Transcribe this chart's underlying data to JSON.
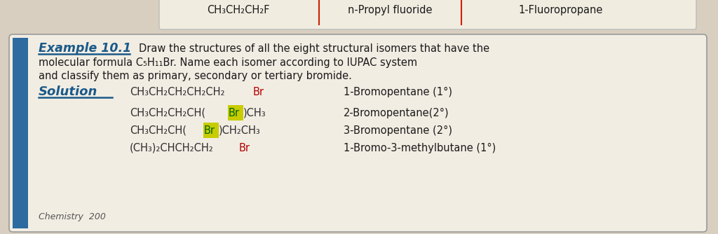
{
  "bg_color": "#d8cfc0",
  "card_color": "#f2ede3",
  "top_card_color": "#f0ece0",
  "top_section": {
    "formula": "CH₃CH₂CH₂F",
    "common_name": "n-Propyl fluoride",
    "iupac_name": "1-Fluoropropane"
  },
  "example_label": "Example 10.1",
  "example_text_line1": "Draw the structures of all the eight structural isomers that have the",
  "example_text_line2": "molecular formula C₅H₁₁Br. Name each isomer according to IUPAC system",
  "example_text_line3": "and classify them as primary, secondary or tertiary bromide.",
  "solution_label": "Solution",
  "solution_entries": [
    {
      "formula_parts": [
        {
          "text": "CH₃CH₂CH₂CH₂CH₂",
          "color": "#2d2d2d",
          "highlight": false
        },
        {
          "text": "Br",
          "color": "#b30000",
          "highlight": false
        }
      ],
      "name": "1-Bromopentane (1°)"
    },
    {
      "formula_parts": [
        {
          "text": "CH₃CH₂CH₂CH(",
          "color": "#2d2d2d",
          "highlight": false
        },
        {
          "text": "Br",
          "color": "#006600",
          "highlight": true
        },
        {
          "text": ")CH₃",
          "color": "#2d2d2d",
          "highlight": false
        }
      ],
      "name": "2-Bromopentane(2°)"
    },
    {
      "formula_parts": [
        {
          "text": "CH₃CH₂CH(",
          "color": "#2d2d2d",
          "highlight": false
        },
        {
          "text": "Br",
          "color": "#006600",
          "highlight": true
        },
        {
          "text": ")CH₂CH₃",
          "color": "#2d2d2d",
          "highlight": false
        }
      ],
      "name": "3-Bromopentane (2°)"
    },
    {
      "formula_parts": [
        {
          "text": "(CH₃)₂CHCH₂CH₂",
          "color": "#2d2d2d",
          "highlight": false
        },
        {
          "text": "Br",
          "color": "#b30000",
          "highlight": false
        }
      ],
      "name": "1-Bromo-3-methylbutane (1°)"
    }
  ],
  "footer_text": "Chemistry  200",
  "accent_color": "#1a5a8a",
  "sidebar_color": "#2d6a9f",
  "highlight_color": "#c8cc00",
  "divider_color": "#cc2200"
}
